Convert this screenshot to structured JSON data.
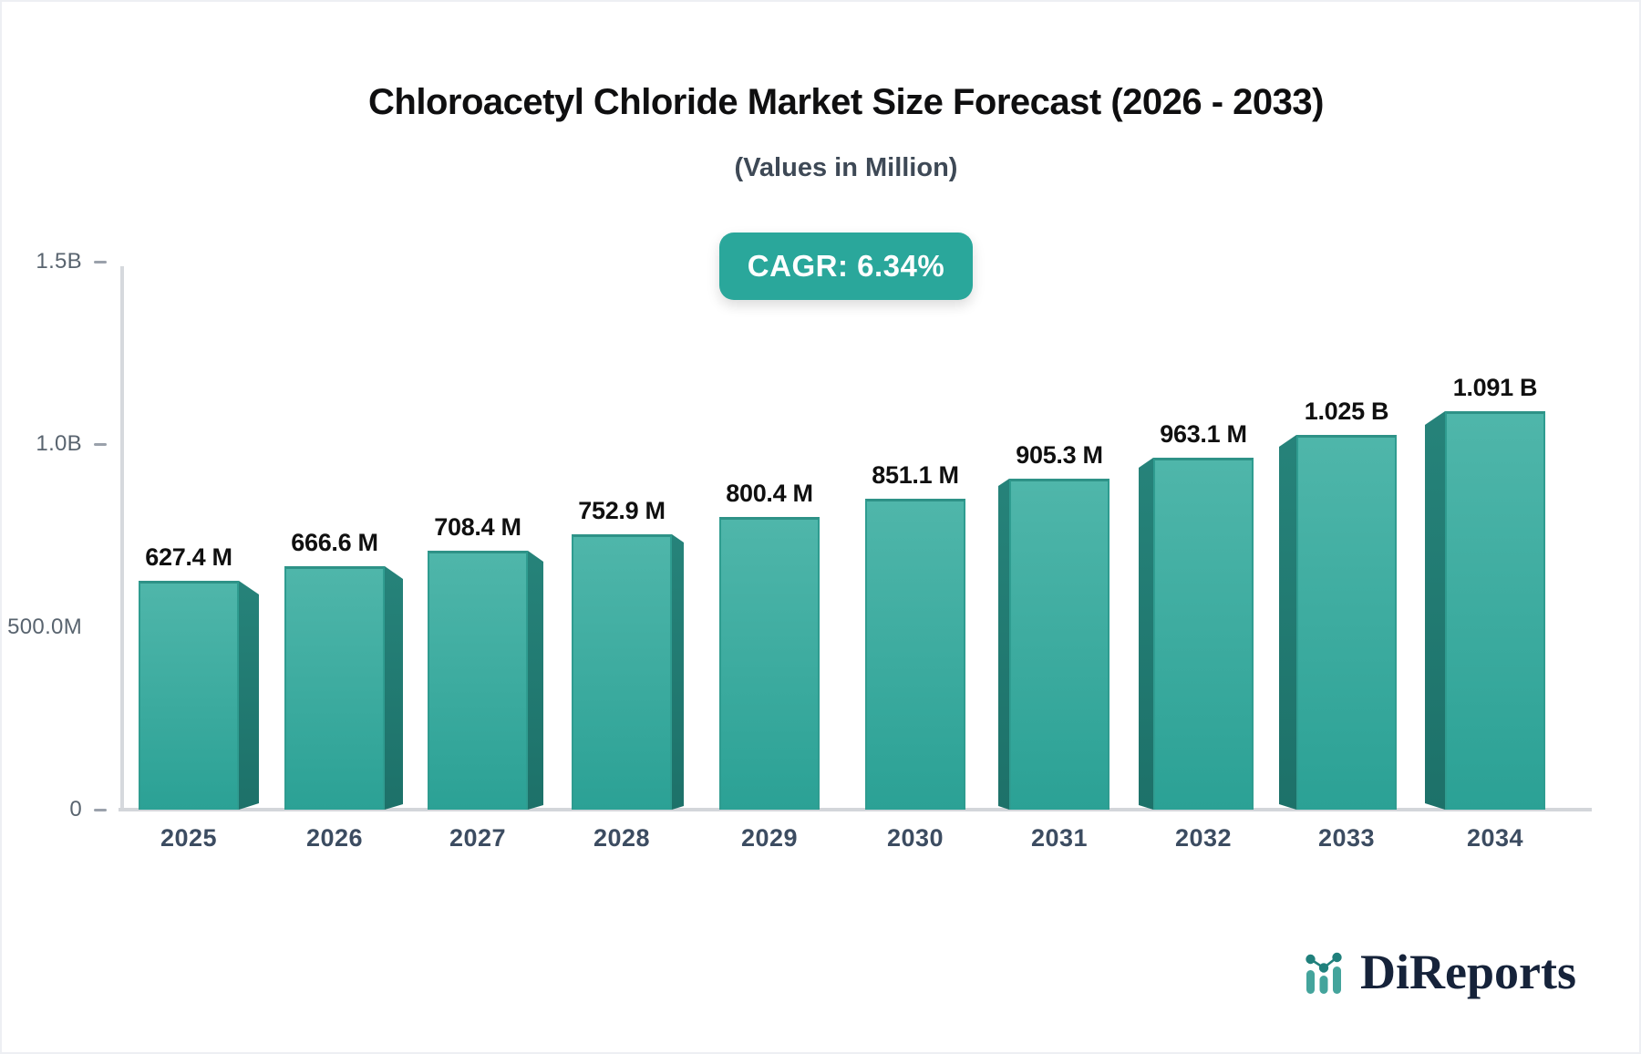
{
  "page": {
    "title": "Chloroacetyl Chloride Market Size Forecast (2026 - 2033)",
    "subtitle": "(Values in Million)",
    "cagr_badge": "CAGR: 6.34%",
    "brand": {
      "name": "DiReports"
    },
    "colors": {
      "badge_bg": "#2aa79b",
      "bar_face_top": "#4fb6aa",
      "bar_face_bottom": "#2ba195",
      "bar_side_face": "#1e7a6e",
      "bar_edge": "#2e9287",
      "axis_line": "#d5d8dc",
      "year_text": "#3c4c61",
      "tick_text": "#59646f",
      "brand_navy": "#16233a",
      "brand_teal": "#2f948c"
    }
  },
  "chart_data": {
    "type": "bar",
    "title": "Chloroacetyl Chloride Market Size Forecast (2026 - 2033)",
    "subtitle": "(Values in Million)",
    "cagr": "6.34%",
    "categories": [
      "2025",
      "2026",
      "2027",
      "2028",
      "2029",
      "2030",
      "2031",
      "2032",
      "2033",
      "2034"
    ],
    "values_in_millions": [
      627.4,
      666.6,
      708.4,
      752.9,
      800.4,
      851.1,
      905.3,
      963.1,
      1025,
      1091
    ],
    "bar_labels": [
      "627.4 M",
      "666.6 M",
      "708.4 M",
      "752.9 M",
      "800.4 M",
      "851.1 M",
      "905.3 M",
      "963.1 M",
      "1.025 B",
      "1.091 B"
    ],
    "ylabel": "",
    "xlabel": "",
    "ylim_millions": [
      0,
      1500
    ],
    "y_ticks": [
      {
        "label": "1.5B",
        "value": 1500,
        "dash": true
      },
      {
        "label": "1.0B",
        "value": 1000,
        "dash": true
      },
      {
        "label": "500.0M",
        "value": 500,
        "dash": false
      },
      {
        "label": "0",
        "value": 0,
        "dash": true
      }
    ],
    "grid": false,
    "legend": false,
    "style": "pseudo-3d bars, teal, center-perspective side faces"
  }
}
